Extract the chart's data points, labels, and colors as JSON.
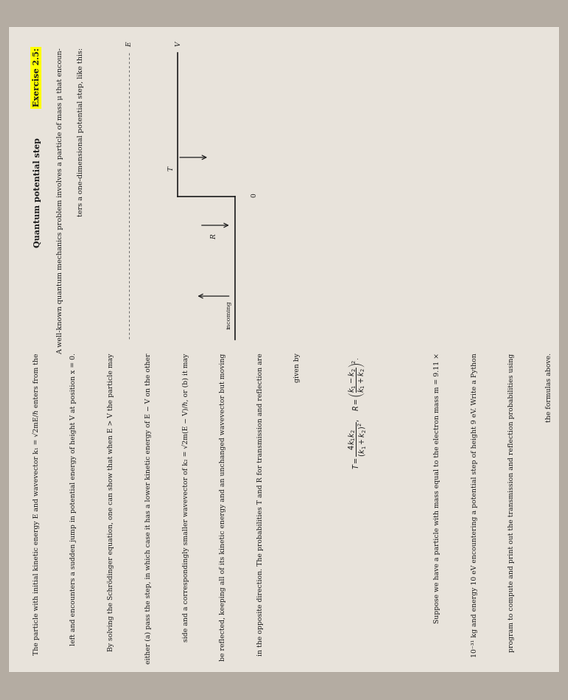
{
  "background_color": "#d4cfc8",
  "page_color": "#e8e3db",
  "text_color": "#1a1a1a",
  "highlight_color": "#ffff00",
  "fig_width": 5.68,
  "fig_height": 7.0,
  "dpi": 100,
  "rotation_deg": -90,
  "fs_title": 7.5,
  "fs_body": 6.5,
  "fs_diagram": 6.0,
  "fs_formula": 7.0
}
